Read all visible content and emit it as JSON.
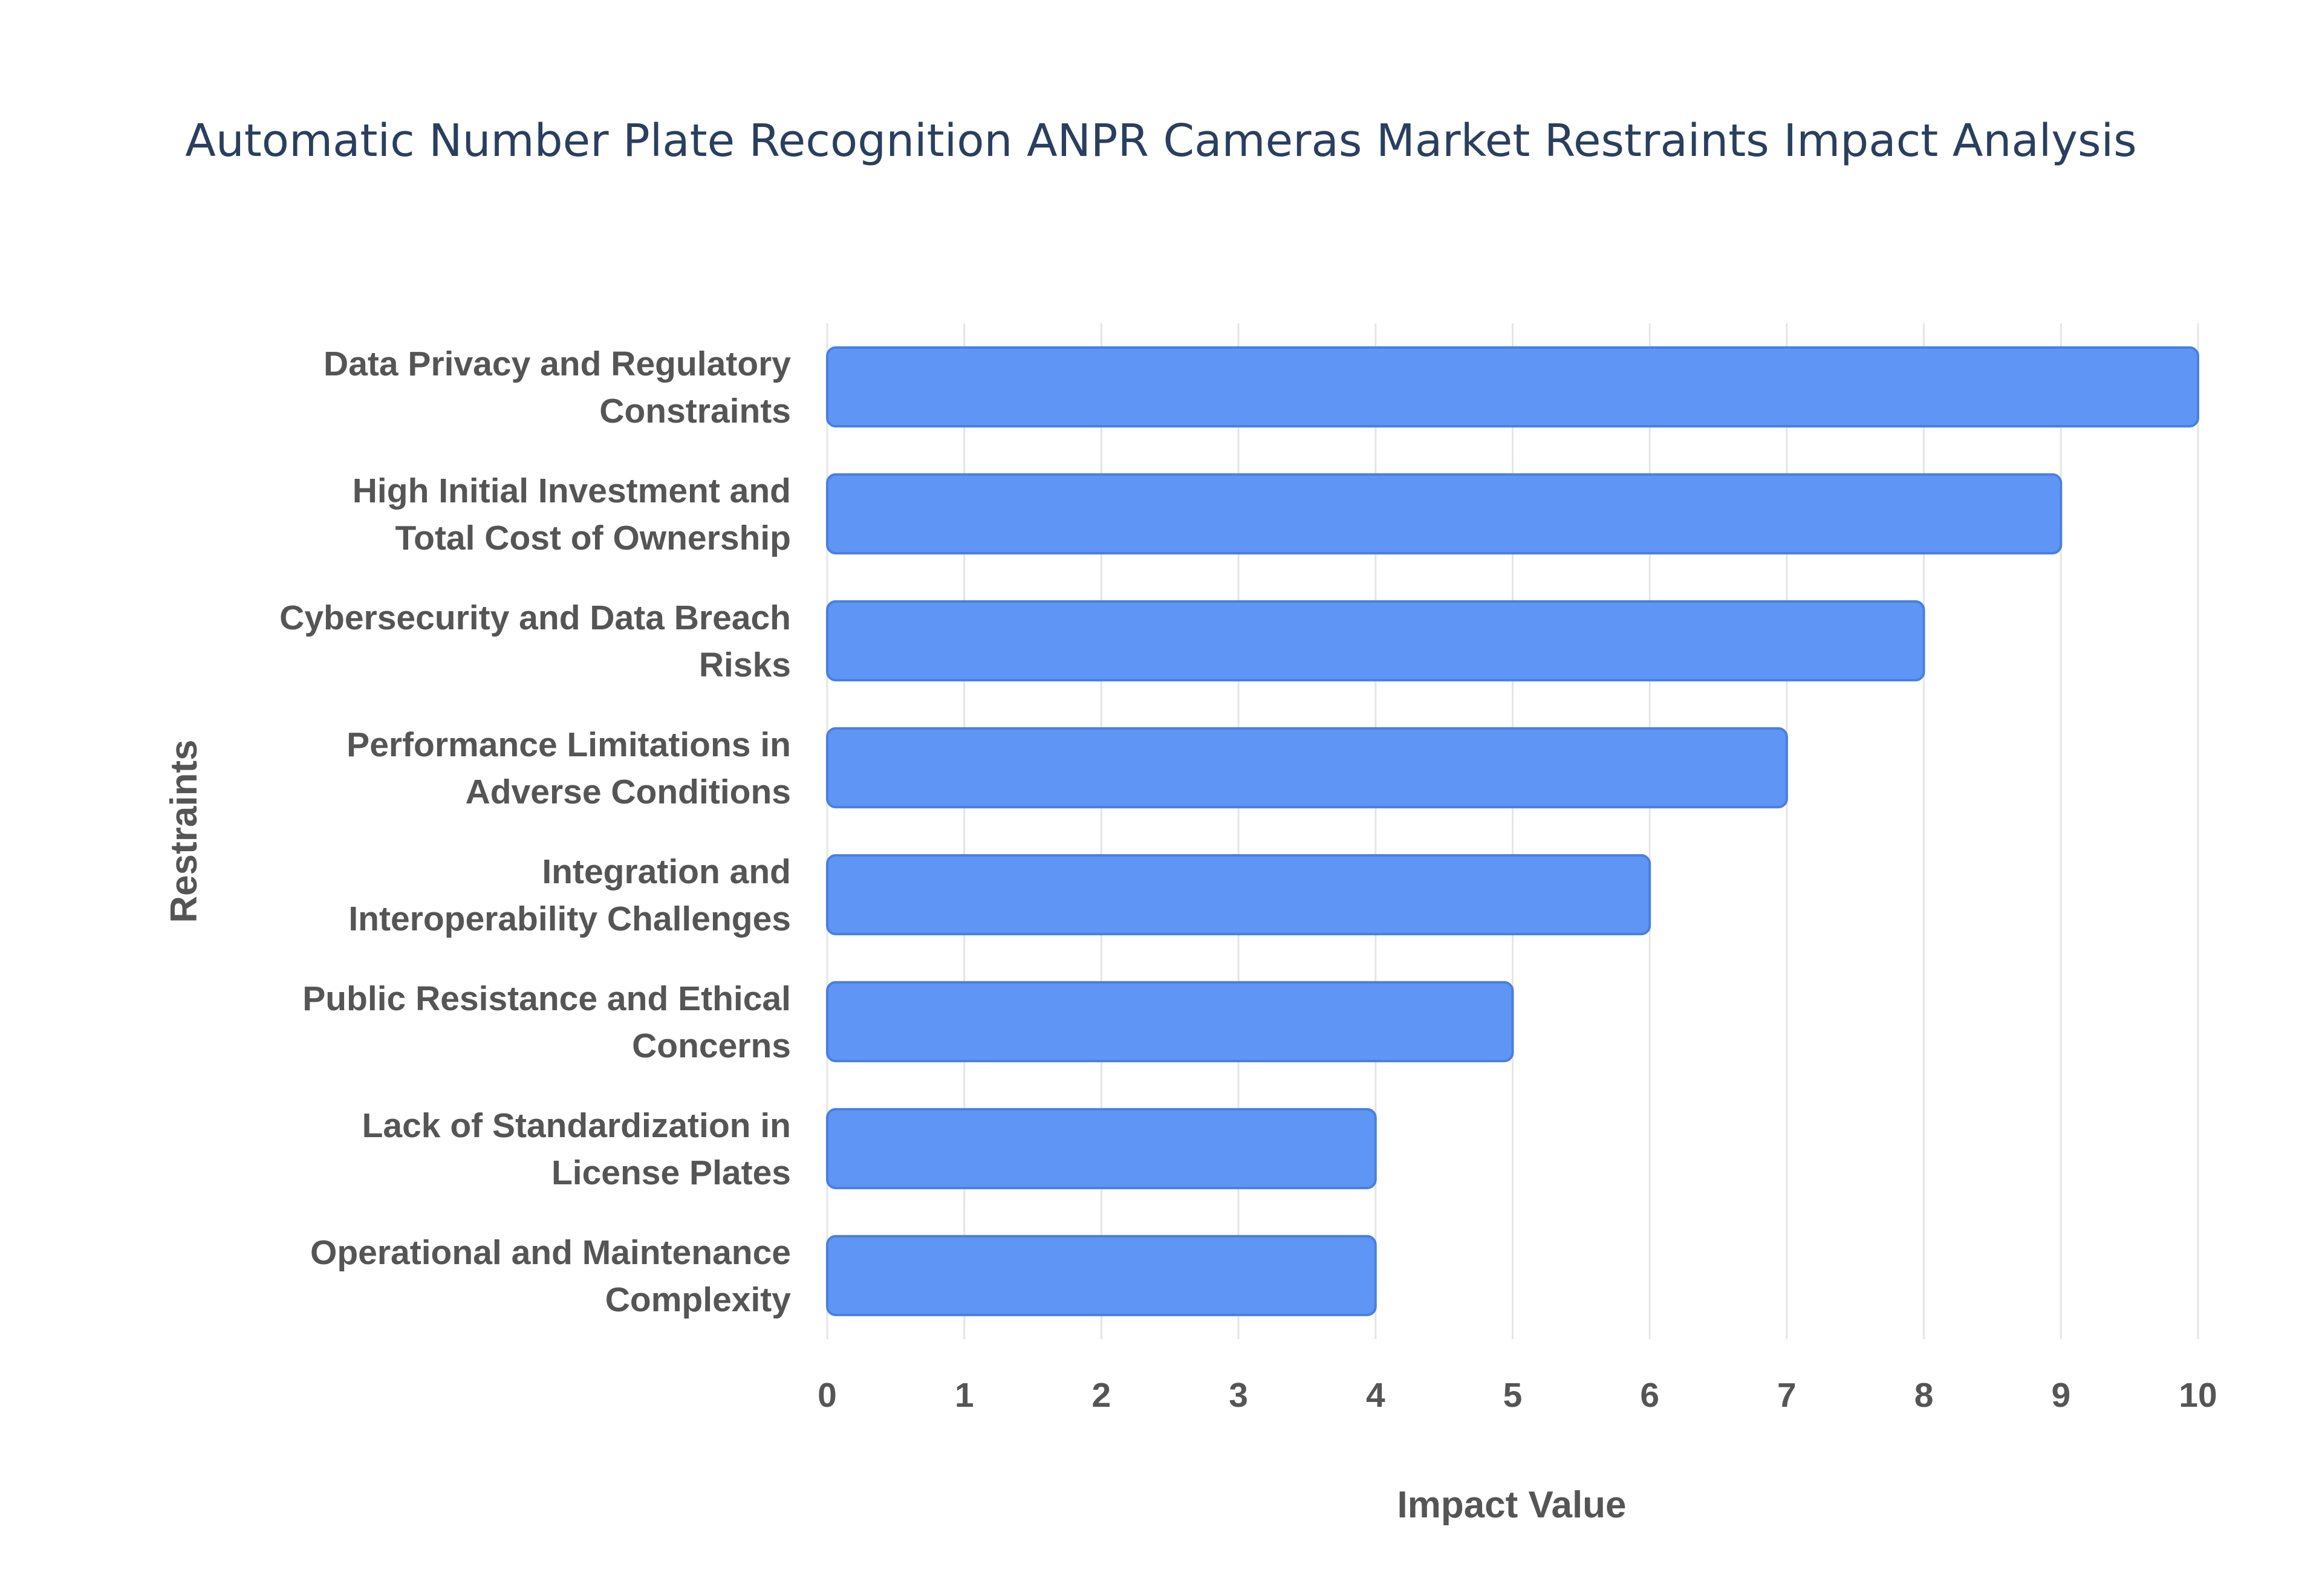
{
  "chart_data": {
    "type": "bar",
    "orientation": "horizontal",
    "title": "Automatic Number Plate Recognition ANPR Cameras Market Restraints Impact Analysis",
    "xlabel": "Impact Value",
    "ylabel": "Restraints",
    "xlim": [
      0,
      10
    ],
    "x_ticks": [
      0,
      1,
      2,
      3,
      4,
      5,
      6,
      7,
      8,
      9,
      10
    ],
    "grid": true,
    "bar_color": "#5f95f4",
    "categories": [
      [
        "Data Privacy and Regulatory",
        "Constraints"
      ],
      [
        "High Initial Investment and",
        "Total Cost of Ownership"
      ],
      [
        "Cybersecurity and Data Breach",
        "Risks"
      ],
      [
        "Performance Limitations in",
        "Adverse Conditions"
      ],
      [
        "Integration and",
        "Interoperability Challenges"
      ],
      [
        "Public Resistance and Ethical",
        "Concerns"
      ],
      [
        "Lack of Standardization in",
        "License Plates"
      ],
      [
        "Operational and Maintenance",
        "Complexity"
      ]
    ],
    "values": [
      10,
      9,
      8,
      7,
      6,
      5,
      4,
      4
    ]
  }
}
